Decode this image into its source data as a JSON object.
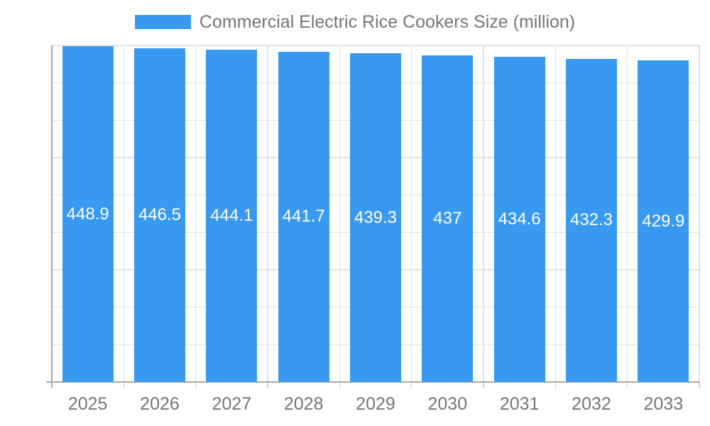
{
  "legend": {
    "label": "Commercial Electric Rice Cookers Size (million)"
  },
  "chart_data": {
    "type": "bar",
    "title": "Commercial Electric Rice Cookers Size (million)",
    "series_name": "Commercial Electric Rice Cookers Size (million)",
    "categories": [
      "2025",
      "2026",
      "2027",
      "2028",
      "2029",
      "2030",
      "2031",
      "2032",
      "2033"
    ],
    "values": [
      448.9,
      446.5,
      444.1,
      441.7,
      439.3,
      437,
      434.6,
      432.3,
      429.9
    ],
    "value_labels": [
      "448.9",
      "446.5",
      "444.1",
      "441.7",
      "439.3",
      "437",
      "434.6",
      "432.3",
      "429.9"
    ],
    "xlabel": "",
    "ylabel": "",
    "ylim": [
      0,
      450
    ],
    "yticks": [
      0,
      50,
      100,
      150,
      200,
      250,
      300,
      350,
      400,
      450
    ],
    "grid": true,
    "legend_position": "top",
    "colors": {
      "bar": "#3899F0",
      "bar_value_text": "#ffffff",
      "grid_line": "#e3e3e3",
      "axis_line": "#a8a8a8",
      "tick_line": "#cccccc",
      "axis_text": "#757575",
      "background": "#ffffff"
    }
  }
}
